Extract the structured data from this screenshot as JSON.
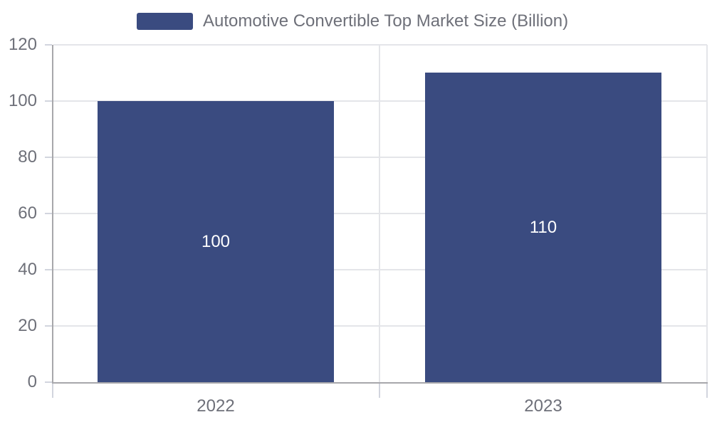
{
  "chart_data": {
    "type": "bar",
    "title": "Automotive Convertible Top Market Size (Billion)",
    "legend": {
      "label": "Automotive Convertible Top Market Size (Billion)",
      "position": "top"
    },
    "categories": [
      "2022",
      "2023"
    ],
    "series": [
      {
        "name": "Automotive Convertible Top Market Size (Billion)",
        "values": [
          100,
          110
        ],
        "data_labels": [
          "100",
          "110"
        ],
        "data_label_position": "inside-center"
      }
    ],
    "xlabel": "",
    "ylabel": "",
    "ylim": [
      0,
      120
    ],
    "yticks": [
      0,
      20,
      40,
      60,
      80,
      100,
      120
    ],
    "grid": true,
    "colors": {
      "bar": "#3A4B80",
      "bar_label": "#FFFFFF",
      "text": "#6E7079",
      "axis_line": "#A7A7AB",
      "tick_line": "#D2D5DE",
      "grid_line": "#E4E5E9",
      "background": "#FFFFFF"
    }
  }
}
